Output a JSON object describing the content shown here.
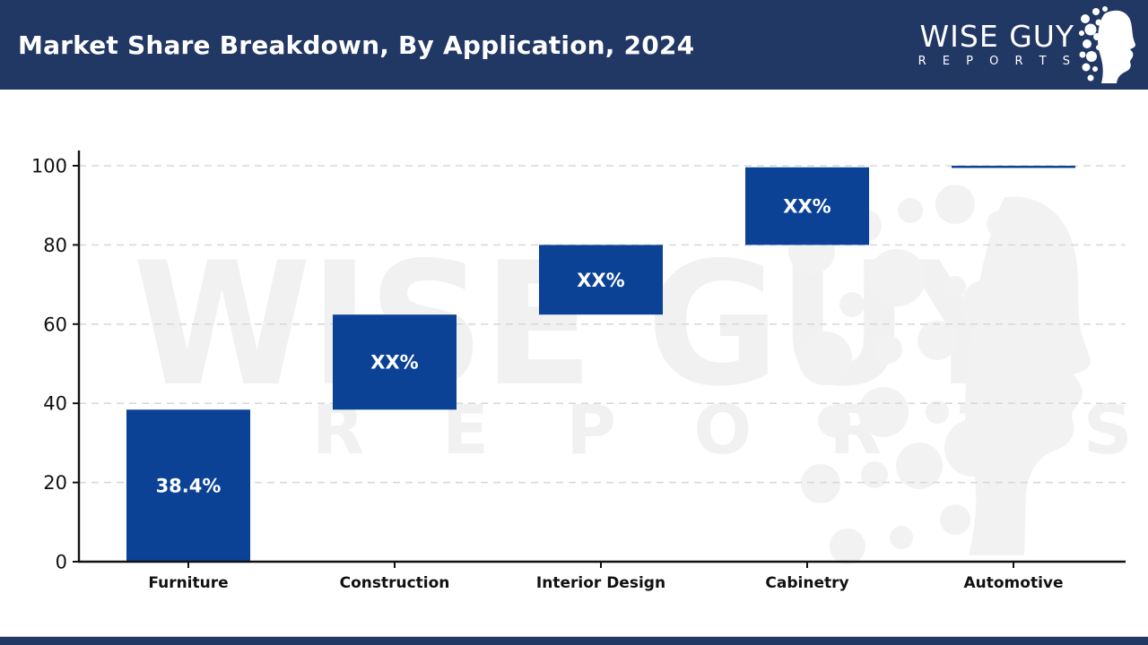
{
  "header": {
    "title": "Market Share Breakdown, By Application, 2024",
    "logo_line1": "WISE GUY",
    "logo_line2": "R E P O R T S",
    "logo_icon": "dotted-head-profile-icon"
  },
  "watermark": {
    "line1": "WISE GUY",
    "line2": "R E P O R T S"
  },
  "colors": {
    "header_bg": "#213764",
    "footer_bg": "#213764",
    "bar": "#0b4296",
    "bar_label": "#ffffff",
    "grid": "#d9d9d9",
    "axis": "#111111",
    "tick_label": "#111111",
    "watermark": "#f1f1f1"
  },
  "chart_data": {
    "type": "bar",
    "subtype": "waterfall",
    "title": "Market Share Breakdown, By Application, 2024",
    "categories": [
      "Furniture",
      "Construction",
      "Interior Design",
      "Cabinetry",
      "Automotive"
    ],
    "bars": [
      {
        "category": "Furniture",
        "start": 0.0,
        "end": 38.4,
        "label": "38.4%"
      },
      {
        "category": "Construction",
        "start": 38.4,
        "end": 62.4,
        "label": "XX%"
      },
      {
        "category": "Interior Design",
        "start": 62.4,
        "end": 80.0,
        "label": "XX%"
      },
      {
        "category": "Cabinetry",
        "start": 80.0,
        "end": 99.6,
        "label": "XX%"
      },
      {
        "category": "Automotive",
        "start": 99.6,
        "end": 100.0,
        "label": ""
      }
    ],
    "xlabel": "",
    "ylabel": "",
    "ylim": [
      0,
      105
    ],
    "yticks": [
      0,
      20,
      40,
      60,
      80,
      100
    ],
    "grid": "horizontal-dashed",
    "legend": "none"
  }
}
